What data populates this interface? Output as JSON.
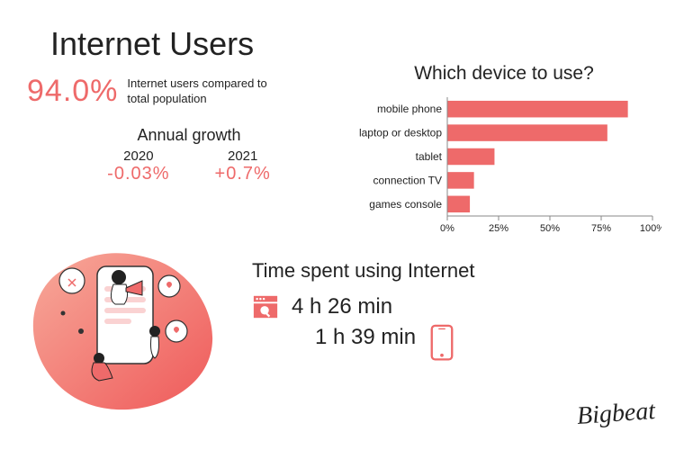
{
  "title": "Internet Users",
  "main_stat": {
    "value": "94.0%",
    "description": "Internet users compared to total population",
    "color": "#ee6a6a"
  },
  "annual_growth": {
    "title": "Annual growth",
    "items": [
      {
        "year": "2020",
        "value": "-0.03%"
      },
      {
        "year": "2021",
        "value": "+0.7%"
      }
    ],
    "value_color": "#ee6a6a"
  },
  "device_chart": {
    "type": "bar",
    "title": "Which device to use?",
    "categories": [
      "mobile phone",
      "laptop or desktop",
      "tablet",
      "connection TV",
      "games console"
    ],
    "values": [
      88,
      78,
      23,
      13,
      11
    ],
    "bar_color": "#ee6a6a",
    "xlim": [
      0,
      100
    ],
    "xtick_step": 25,
    "xtick_suffix": "%",
    "axis_color": "#888888",
    "background_color": "#ffffff",
    "label_fontsize": 12,
    "tick_fontsize": 11,
    "bar_height_ratio": 0.7
  },
  "time_spent": {
    "title": "Time spent using Internet",
    "desktop": "4 h 26 min",
    "mobile": "1 h 39 min",
    "icon_color": "#ee6a6a"
  },
  "illustration": {
    "blob_gradient_from": "#f7a99a",
    "blob_gradient_to": "#ef5a5a",
    "accent": "#ee6a6a"
  },
  "signature": "Bigbeat"
}
